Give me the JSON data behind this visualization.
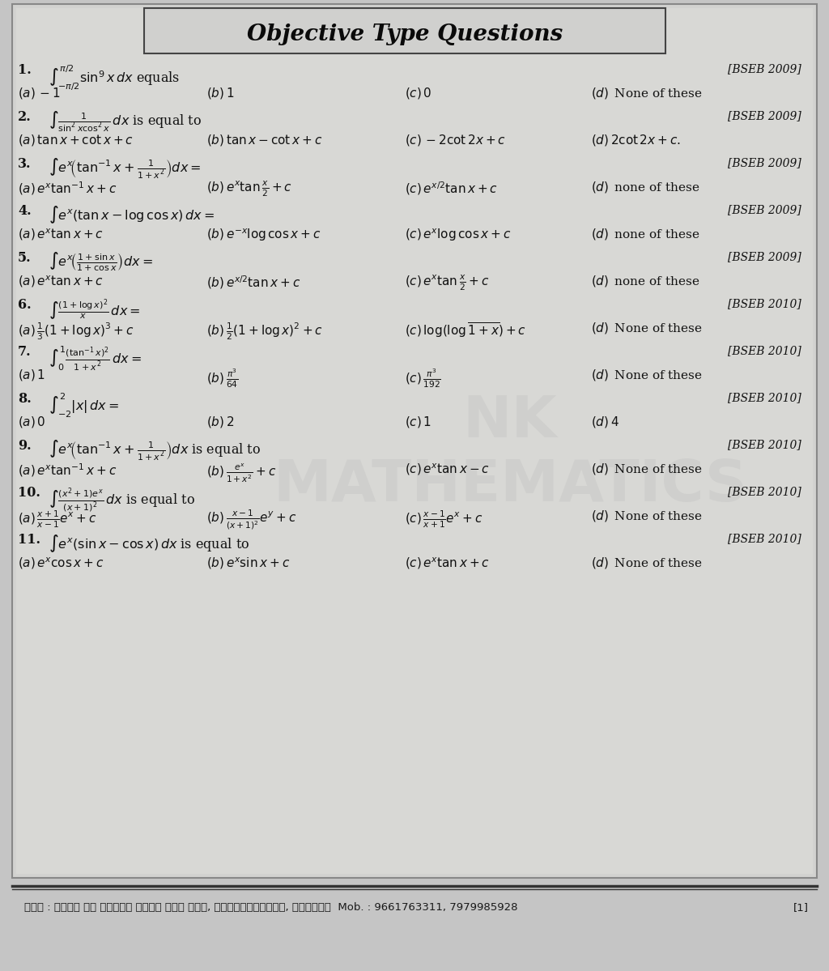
{
  "title": "Objective Type Questions",
  "bg_color": "#d8d8d8",
  "page_color": "#c8c8c8",
  "text_color": "#1a1a1a",
  "border_color": "#555555",
  "questions": [
    {
      "num": "1.",
      "text": "$\\int_{-\\pi/2}^{\\pi/2} \\sin^9x\\, dx$ equals",
      "tag": "[BSEB 2009]",
      "opts": [
        "$(a)\\,-1$",
        "$(b)\\,1$",
        "$(c)\\,0$",
        "$(d)\\,$ None of these"
      ]
    },
    {
      "num": "2.",
      "text": "$\\int \\frac{1}{\\sin^2x\\cos^2x}\\,dx$ is equal to",
      "tag": "[BSEB 2009]",
      "opts": [
        "$(a)\\,\\tan x+\\cot x+c$",
        "$(b)\\,\\tan x-\\cot x+c$",
        "$(c)\\,-2\\cot 2x+c$",
        "$(d)\\,2\\cot2x+c.$"
      ]
    },
    {
      "num": "3.",
      "text": "$\\int e^x\\!\\left(\\tan^{-1}x+\\frac{1}{1+x^2}\\right)dx=$",
      "tag": "[BSEB 2009]",
      "opts": [
        "$(a)\\,e^x\\tan^{-1}x+c$",
        "$(b)\\,e^x\\tan\\frac{x}{2}+c$",
        "$(c)\\,e^{x/2}\\tan x+c$",
        "$(d)\\,$ none of these"
      ]
    },
    {
      "num": "4.",
      "text": "$\\int e^x(\\tan x-\\log\\cos x)\\,dx=$",
      "tag": "[BSEB 2009]",
      "opts": [
        "$(a)\\,e^x\\tan x+c$",
        "$(b)\\,e^{-x}\\log\\cos x+c$",
        "$(c)\\,e^x\\log\\cos x+c$",
        "$(d)\\,$ none of these"
      ]
    },
    {
      "num": "5.",
      "text": "$\\int e^x\\!\\left(\\frac{1+\\sin x}{1+\\cos x}\\right)dx=$",
      "tag": "[BSEB 2009]",
      "opts": [
        "$(a)\\,e^x\\tan x+c$",
        "$(b)\\,e^{x/2}\\tan x+c$",
        "$(c)\\,e^x\\tan\\frac{x}{2}+c$",
        "$(d)\\,$ none of these"
      ]
    },
    {
      "num": "6.",
      "text": "$\\int\\frac{(1+\\log x)^2}{x}\\,dx=$",
      "tag": "[BSEB 2010]",
      "opts": [
        "$(a)\\,\\frac{1}{3}(1+\\log x)^3+c$",
        "$(b)\\,\\frac{1}{2}(1+\\log x)^2+c$",
        "$(c)\\,\\log(\\log\\overline{1+x})+c$",
        "$(d)\\,$ None of these"
      ]
    },
    {
      "num": "7.",
      "text": "$\\int_0^1\\frac{(\\tan^{-1}x)^2}{1+x^2}\\,dx=$",
      "tag": "[BSEB 2010]",
      "opts": [
        "$(a)\\,1$",
        "$(b)\\,\\frac{\\pi^3}{64}$",
        "$(c)\\,\\frac{\\pi^3}{192}$",
        "$(d)\\,$ None of these"
      ]
    },
    {
      "num": "8.",
      "text": "$\\int_{-2}^{2}|x|\\,dx=$",
      "tag": "[BSEB 2010]",
      "opts": [
        "$(a)\\,0$",
        "$(b)\\,2$",
        "$(c)\\,1$",
        "$(d)\\,4$"
      ]
    },
    {
      "num": "9.",
      "text": "$\\int e^x\\!\\left(\\tan^{-1}x+\\frac{1}{1+x^2}\\right)dx$ is equal to",
      "tag": "[BSEB 2010]",
      "opts": [
        "$(a)\\,e^x\\tan^{-1}x+c$",
        "$(b)\\,\\frac{e^x}{1+x^2}+c$",
        "$(c)\\,e^x\\tan x-c$",
        "$(d)\\,$ None of these"
      ]
    },
    {
      "num": "10.",
      "text": "$\\int\\frac{(x^2+1)e^x}{(x+1)^2}\\,dx$ is equal to",
      "tag": "[BSEB 2010]",
      "opts": [
        "$(a)\\,\\frac{x+1}{x-1}e^x+c$",
        "$(b)\\,\\frac{x-1}{(x+1)^2}e^y+c$",
        "$(c)\\,\\frac{x-1}{x+1}e^x+c$",
        "$(d)\\,$ None of these"
      ]
    },
    {
      "num": "11.",
      "text": "$\\int e^x(\\sin x-\\cos x)\\,dx$ is equal to",
      "tag": "[BSEB 2010]",
      "opts": [
        "$(a)\\,e^x\\cos x+c$",
        "$(b)\\,e^x\\sin x+c$",
        "$(c)\\,e^x\\tan x+c$",
        "$(d)\\,$ None of these"
      ]
    }
  ],
  "footer_text": "पता : मजार के सामने वाली गली में, भठियारीसराय, दरभंगा  Mob. : 9661763311, 7979985928",
  "footer_num": "[1]",
  "watermark": "NK\nMATHEMATICS"
}
